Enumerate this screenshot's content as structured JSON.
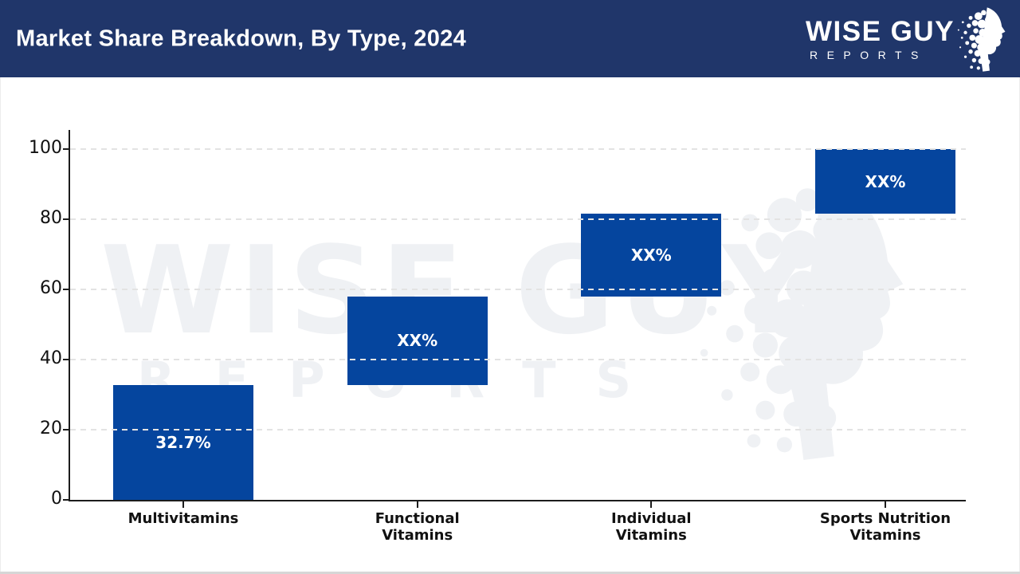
{
  "header": {
    "title": "Market Share Breakdown, By Type, 2024"
  },
  "logo": {
    "line1": "WISE GUY",
    "line2": "REPORTS"
  },
  "watermark": {
    "line1": "WISE GUY",
    "line2": "REPORTS"
  },
  "chart_data": {
    "type": "bar",
    "variant": "waterfall",
    "title": "Market Share Breakdown, By Type, 2024",
    "categories": [
      "Multivitamins",
      "Functional Vitamins",
      "Individual Vitamins",
      "Sports Nutrition Vitamins"
    ],
    "categories_lines": [
      [
        "Multivitamins"
      ],
      [
        "Functional",
        "Vitamins"
      ],
      [
        "Individual",
        "Vitamins"
      ],
      [
        "Sports Nutrition",
        "Vitamins"
      ]
    ],
    "segments": [
      {
        "category": "Multivitamins",
        "start": 0,
        "end": 32.7,
        "label": "32.7%"
      },
      {
        "category": "Functional Vitamins",
        "start": 32.7,
        "end": 58.0,
        "label": "XX%"
      },
      {
        "category": "Individual Vitamins",
        "start": 58.0,
        "end": 81.5,
        "label": "XX%"
      },
      {
        "category": "Sports Nutrition Vitamins",
        "start": 81.5,
        "end": 100.0,
        "label": "XX%"
      }
    ],
    "increments": [
      32.7,
      25.3,
      23.5,
      18.5
    ],
    "ylim": [
      0,
      105
    ],
    "yticks": [
      0,
      20,
      40,
      60,
      80,
      100
    ],
    "xlabel": "",
    "ylabel": "",
    "grid": "horizontal-dashed",
    "legend": "none",
    "bar_color": "#05459e",
    "bar_label_color": "#ffffff",
    "axis_color": "#1c1c1c",
    "gridline_color": "#e3e3e3",
    "header_bg": "#20366a",
    "watermark_color": "#eff1f4"
  }
}
